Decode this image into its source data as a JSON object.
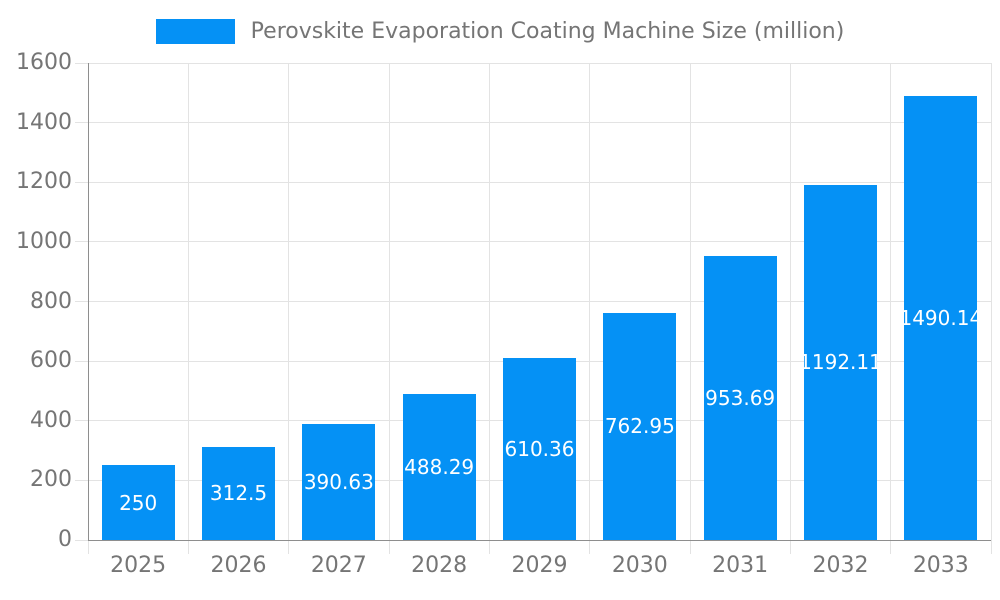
{
  "chart_data": {
    "type": "bar",
    "title": "Perovskite Evaporation Coating Machine Size (million)",
    "categories": [
      "2025",
      "2026",
      "2027",
      "2028",
      "2029",
      "2030",
      "2031",
      "2032",
      "2033"
    ],
    "values": [
      250,
      312.5,
      390.63,
      488.29,
      610.36,
      762.95,
      953.69,
      1192.11,
      1490.14
    ],
    "value_labels": [
      "250",
      "312.5",
      "390.63",
      "488.29",
      "610.36",
      "762.95",
      "953.69",
      "1192.11",
      "1490.14"
    ],
    "xlabel": "",
    "ylabel": "",
    "ylim": [
      0,
      1600
    ],
    "yticks": [
      0,
      200,
      400,
      600,
      800,
      1000,
      1200,
      1400,
      1600
    ],
    "grid": "horizontal and vertical",
    "legend_position": "top-center"
  },
  "colors": {
    "bar": "#0591F5",
    "bar_label_text": "#ffffff",
    "axis_text": "#757575",
    "legend_text": "#757575",
    "grid_line": "#e3e3e3",
    "axis_line": "#8e8e8e",
    "background": "#ffffff"
  }
}
